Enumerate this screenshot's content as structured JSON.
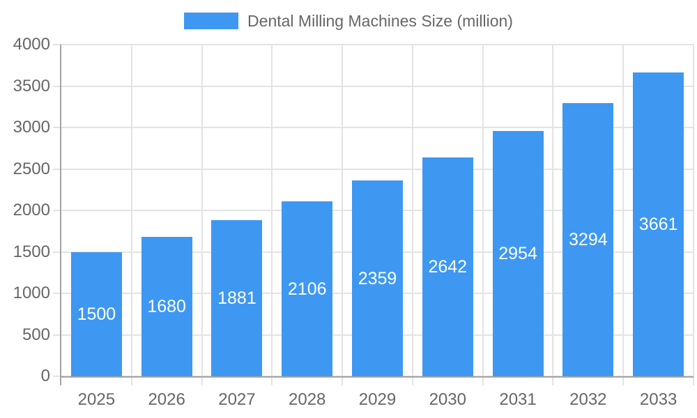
{
  "legend": {
    "label": "Dental Milling Machines Size (million)"
  },
  "colors": {
    "bar": "#3E98F2",
    "grid": "#E3E3E3",
    "axis": "#A3A3A3",
    "text": "#666666",
    "bar_label": "#FFFFFF",
    "background": "#FFFFFF"
  },
  "chart_data": {
    "type": "bar",
    "title": "Dental Milling Machines Size (million)",
    "categories": [
      "2025",
      "2026",
      "2027",
      "2028",
      "2029",
      "2030",
      "2031",
      "2032",
      "2033"
    ],
    "values": [
      1500,
      1680,
      1881,
      2106,
      2359,
      2642,
      2954,
      3294,
      3661
    ],
    "xlabel": "",
    "ylabel": "",
    "ylim": [
      0,
      4000
    ],
    "y_ticks": [
      0,
      500,
      1000,
      1500,
      2000,
      2500,
      3000,
      3500,
      4000
    ],
    "grid": true,
    "legend_position": "top",
    "bar_value_labels": "centered-white"
  }
}
